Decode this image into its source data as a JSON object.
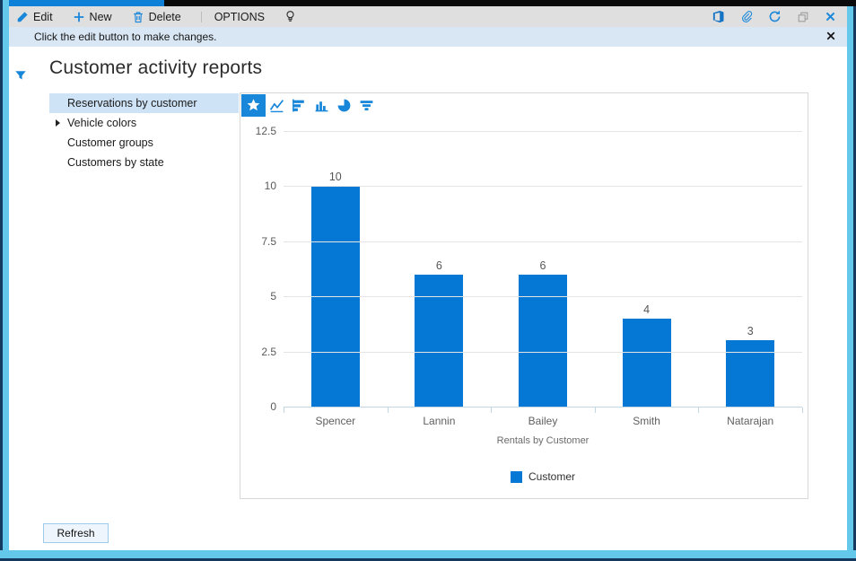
{
  "toolbar": {
    "edit_label": "Edit",
    "new_label": "New",
    "delete_label": "Delete",
    "options_label": "OPTIONS"
  },
  "notification": {
    "message": "Click the edit button to make changes."
  },
  "page": {
    "title": "Customer activity reports",
    "reports": [
      {
        "label": "Reservations by customer",
        "selected": true,
        "expandable": false
      },
      {
        "label": "Vehicle colors",
        "selected": false,
        "expandable": true
      },
      {
        "label": "Customer groups",
        "selected": false,
        "expandable": false
      },
      {
        "label": "Customers by state",
        "selected": false,
        "expandable": false
      }
    ],
    "refresh_label": "Refresh"
  },
  "chart_toolbar": {
    "icons": [
      "star",
      "line-chart",
      "bar-horizontal-chart",
      "column-chart",
      "donut-chart",
      "funnel-chart"
    ],
    "selected": "star"
  },
  "chart_data": {
    "type": "bar",
    "categories": [
      "Spencer",
      "Lannin",
      "Bailey",
      "Smith",
      "Natarajan"
    ],
    "values": [
      10,
      6,
      6,
      4,
      3
    ],
    "series": [
      {
        "name": "Customer",
        "values": [
          10,
          6,
          6,
          4,
          3
        ]
      }
    ],
    "xlabel": "Rentals by Customer",
    "ylabel": "",
    "ylim": [
      0,
      12.5
    ],
    "yticks": [
      0,
      2.5,
      5,
      7.5,
      10,
      12.5
    ],
    "grid": true,
    "legend_position": "bottom",
    "legend_label": "Customer",
    "bar_color": "#0478d4"
  },
  "colors": {
    "accent_blue": "#1886d9",
    "bar_blue": "#0478d4",
    "frame_cyan": "#63c8e9",
    "frame_navy": "#16395f",
    "notification_bg": "#d9e7f5",
    "selected_item_bg": "#cfe3f7"
  }
}
